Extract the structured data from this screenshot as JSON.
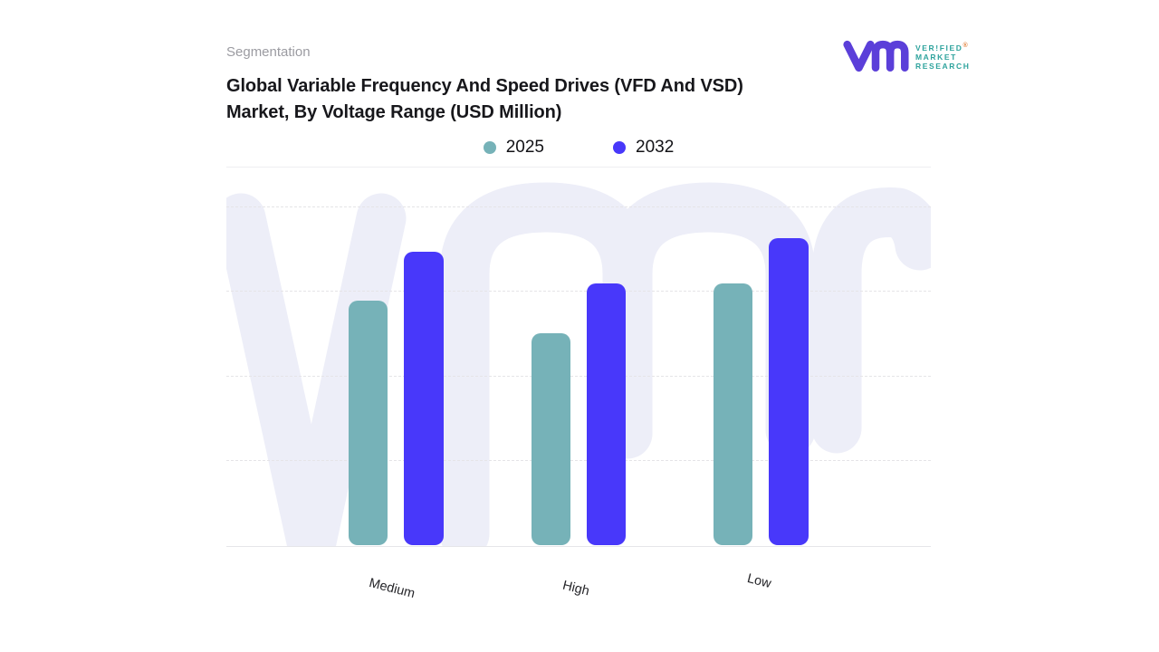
{
  "header": {
    "eyebrow": "Segmentation",
    "title_lines": [
      "Global Variable Frequency And Speed Drives (VFD And VSD)",
      "Market, By Voltage Range (USD Million)"
    ]
  },
  "logo": {
    "brand_line1": "VER!FIED",
    "brand_line2": "MARKET",
    "brand_line3": "RESEARCH",
    "registered_mark": "®",
    "glyph_color": "#5b3fd9",
    "text_color": "#2ea39d"
  },
  "chart_data": {
    "type": "bar",
    "title": "Global Variable Frequency And Speed Drives (VFD And VSD) Market, By Voltage Range (USD Million)",
    "categories": [
      "Medium",
      "High",
      "Low"
    ],
    "series": [
      {
        "name": "2025",
        "color": "#76b2b8",
        "values": [
          64.6,
          56.0,
          69.1
        ]
      },
      {
        "name": "2032",
        "color": "#4838fa",
        "values": [
          77.5,
          69.1,
          81.1
        ]
      }
    ],
    "xlabel": "",
    "ylabel": "",
    "ylim": [
      0,
      100
    ],
    "y_axis_labeled": false,
    "value_units": "percent of plot height (no numeric axis shown)",
    "grid": "horizontal-dashed",
    "gridline_count": 4,
    "legend_position": "top-center",
    "background_watermark": "vmr-logo"
  }
}
